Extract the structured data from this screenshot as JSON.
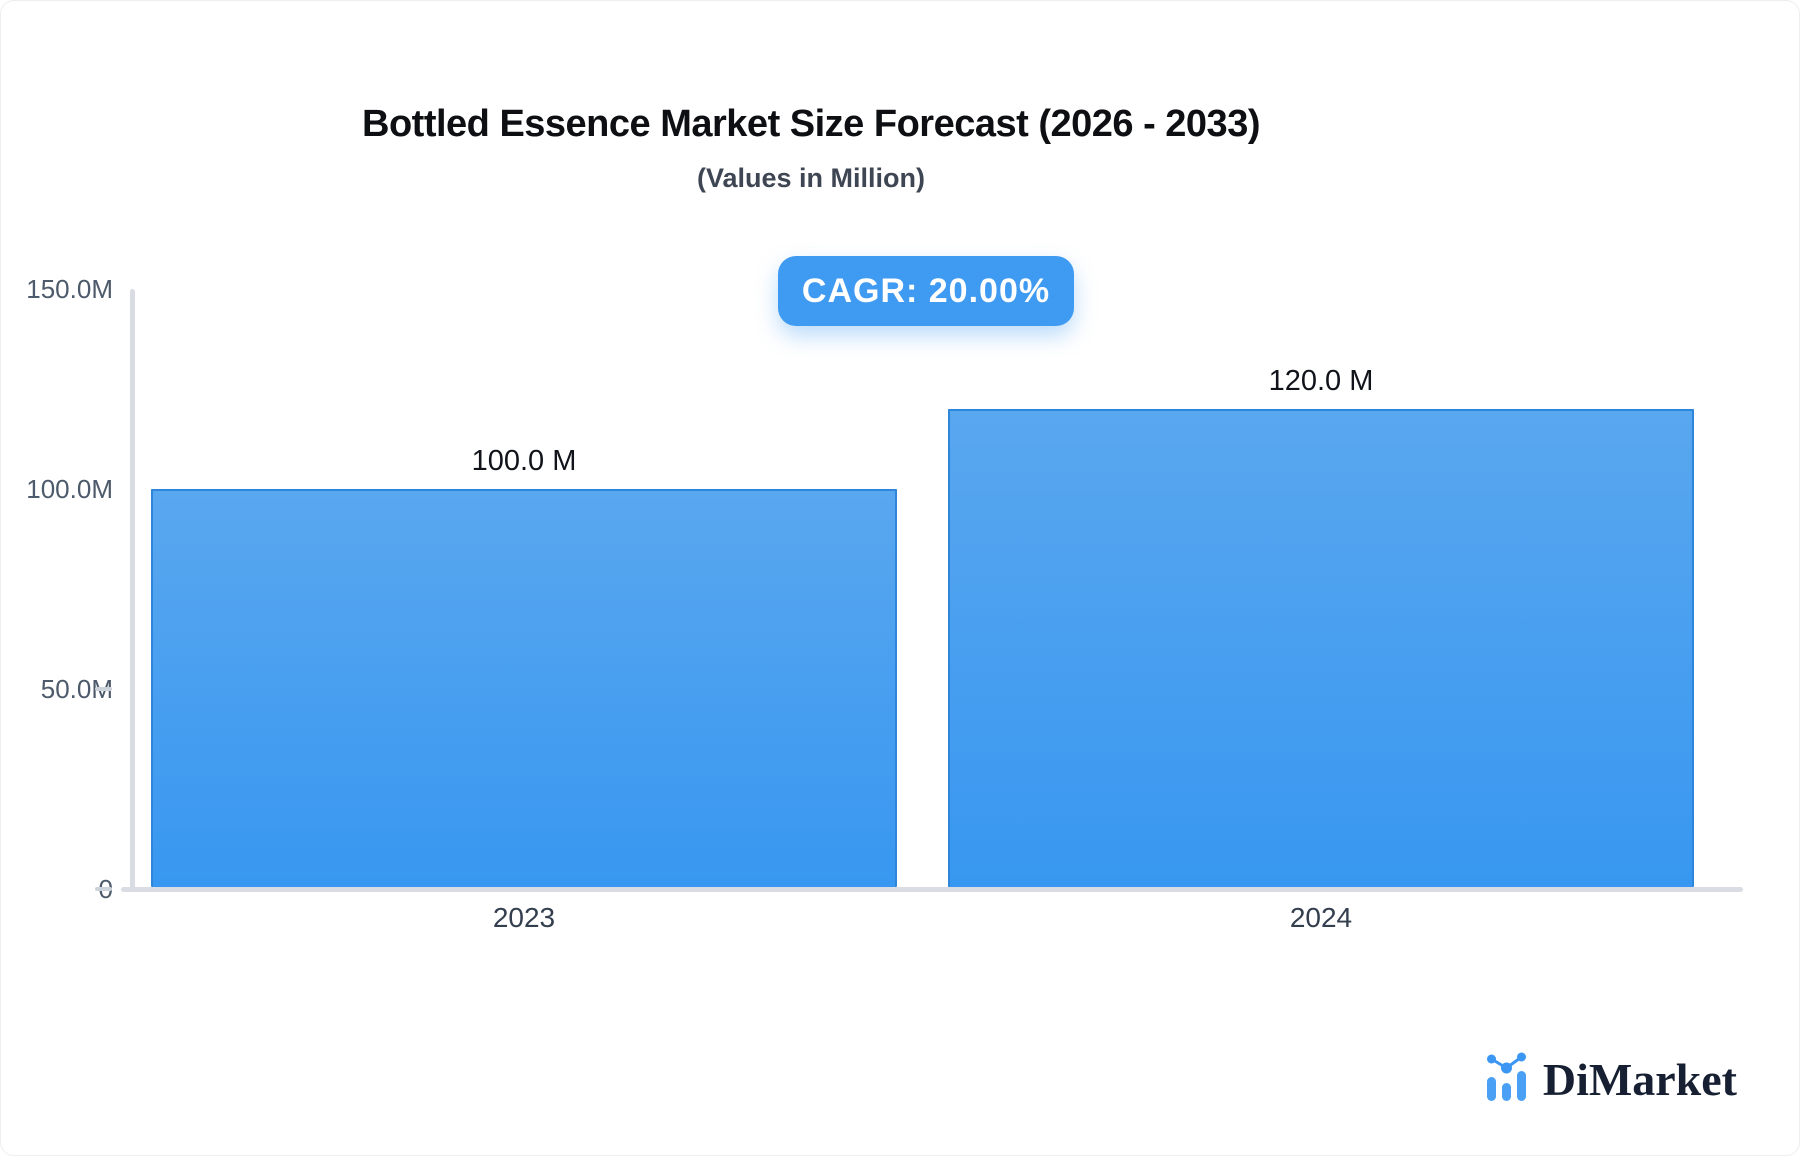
{
  "header": {
    "title": "Bottled Essence Market Size Forecast (2026 - 2033)",
    "subtitle": "(Values in Million)",
    "cagr_badge": "CAGR: 20.00%"
  },
  "chart_data": {
    "type": "bar",
    "title": "Bottled Essence Market Size Forecast (2026 - 2033)",
    "subtitle": "(Values in Million)",
    "unit": "Million",
    "cagr": "20.00%",
    "categories": [
      "2023",
      "2024"
    ],
    "values": [
      100.0,
      120.0
    ],
    "value_labels": [
      "100.0 M",
      "120.0 M"
    ],
    "ylim": [
      0,
      150
    ],
    "yticks": [
      {
        "label": "150.0M",
        "value": 150,
        "tick_mark": false
      },
      {
        "label": "100.0M",
        "value": 100,
        "tick_mark": false
      },
      {
        "label": "50.0M",
        "value": 50,
        "tick_mark": true
      },
      {
        "label": "0",
        "value": 0,
        "tick_mark": true
      }
    ],
    "grid": false,
    "legend": false
  },
  "colors": {
    "accent_blue": "#3f9af1",
    "bar_gradient_top": "#59a7ef",
    "bar_gradient_bottom": "#3897f0",
    "bar_border": "#2e86db",
    "axis_line": "#d9dde3",
    "badge_text": "#ffffff",
    "logo_bar_blue": "#4aa0f5",
    "logo_dot_blue": "#3b97f3",
    "logo_text_navy": "#172032"
  },
  "logo": {
    "text": "DiMarket",
    "icon": "mini-bar-line-chart-icon"
  }
}
